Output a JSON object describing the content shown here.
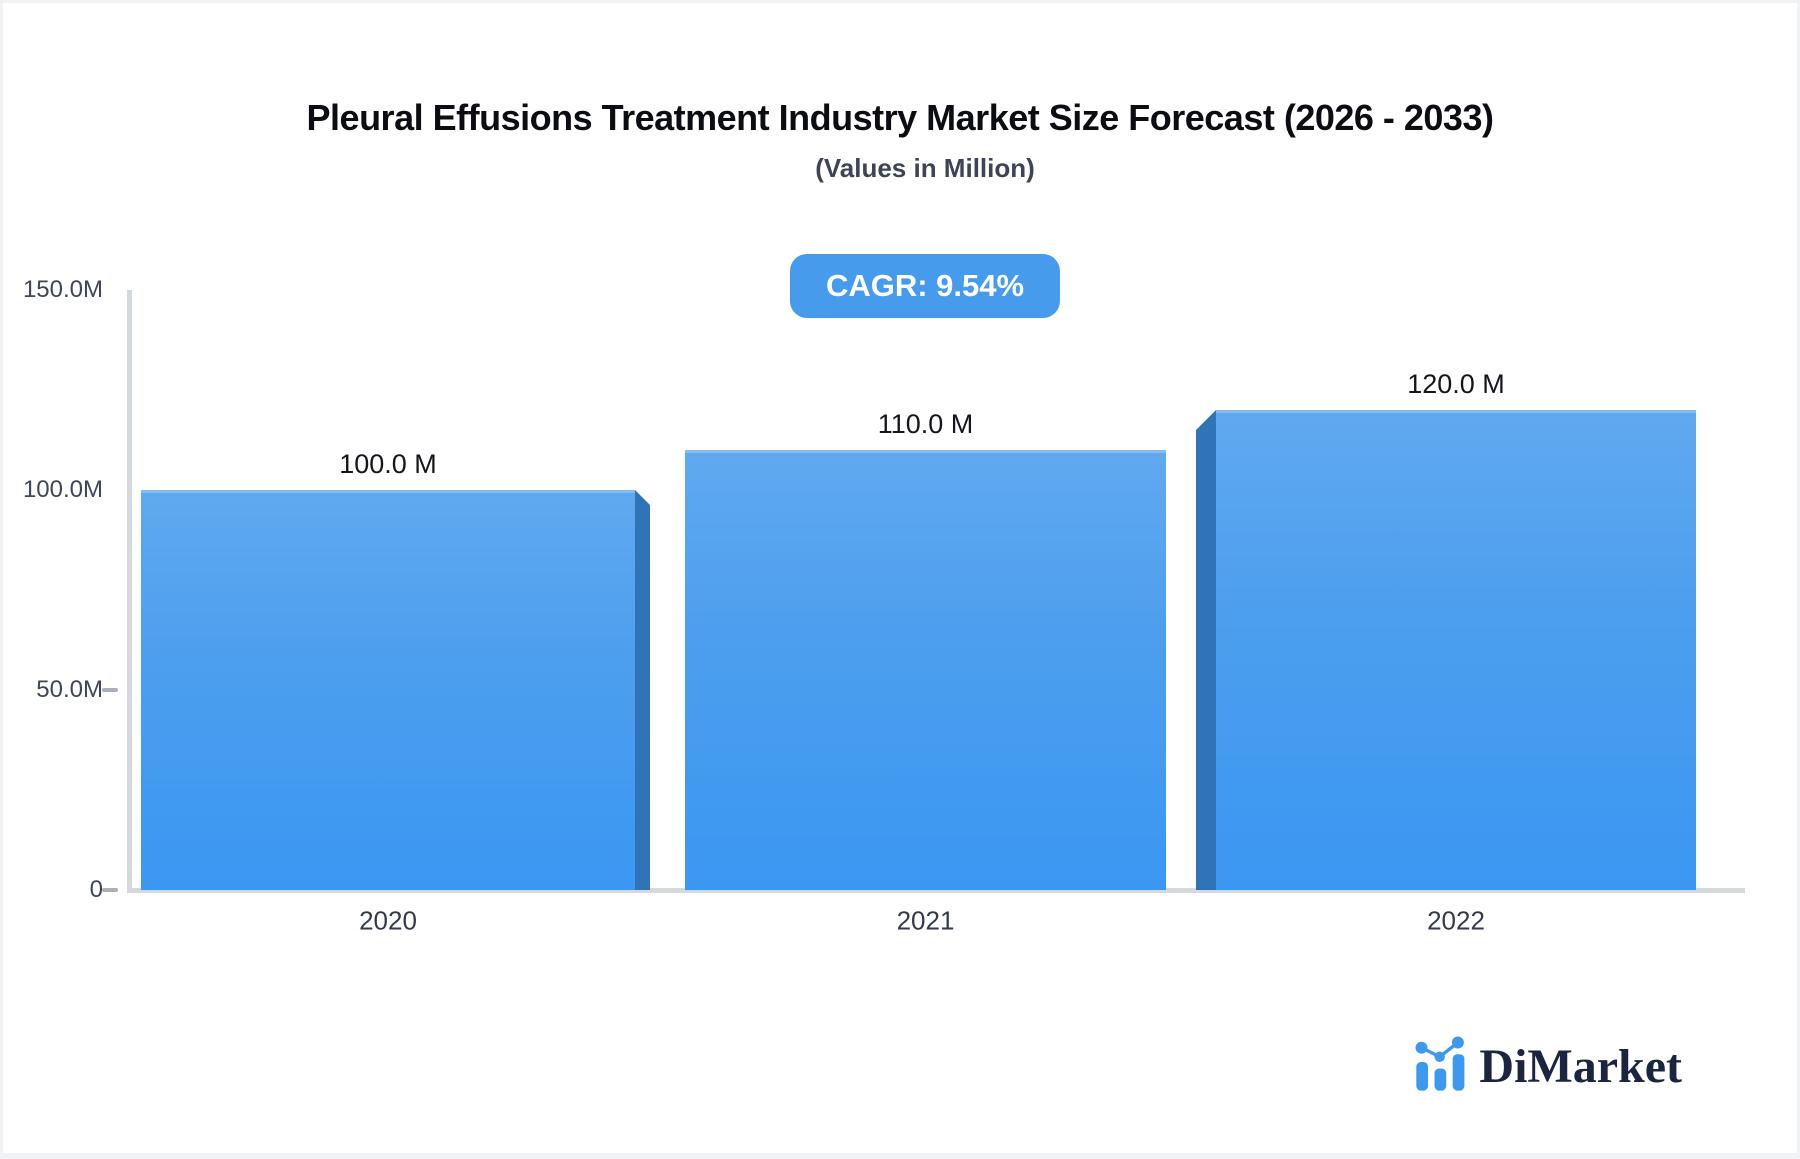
{
  "header": {
    "title": "Pleural Effusions Treatment Industry Market Size Forecast (2026 - 2033)",
    "subtitle": "(Values in Million)",
    "cagr_badge": "CAGR: 9.54%"
  },
  "chart_data": {
    "type": "bar",
    "categories": [
      "2020",
      "2021",
      "2022"
    ],
    "values": [
      100,
      110,
      120
    ],
    "value_labels": [
      "100.0 M",
      "110.0 M",
      "120.0 M"
    ],
    "title": "Pleural Effusions Treatment Industry Market Size Forecast (2026 - 2033)",
    "subtitle": "(Values in Million)",
    "xlabel": "",
    "ylabel": "",
    "ylim": [
      0,
      150
    ],
    "y_ticks": [
      {
        "value": 150,
        "label": "150.0M",
        "dash": false
      },
      {
        "value": 100,
        "label": "100.0M",
        "dash": false
      },
      {
        "value": 50,
        "label": "50.0M",
        "dash": true
      },
      {
        "value": 0,
        "label": "0",
        "dash": true
      }
    ],
    "grid": false,
    "legend_position": "none",
    "bar_style_3d": true
  },
  "colors": {
    "bar_gradient_top": "#61a9f0",
    "bar_gradient_bottom": "#3b97f2",
    "bar_side_bevel": "#2f74b7",
    "badge_background": "#479bed",
    "badge_text": "#ffffff",
    "axis_line": "#d5d9de",
    "tick_text": "#3f4657",
    "title_text": "#0c0d13",
    "logo_blue": "#3b99f0",
    "logo_navy": "#1b2540"
  },
  "branding": {
    "logo_text": "DiMarket",
    "logo_icon": "bar-chart-with-trend-dots-icon"
  }
}
